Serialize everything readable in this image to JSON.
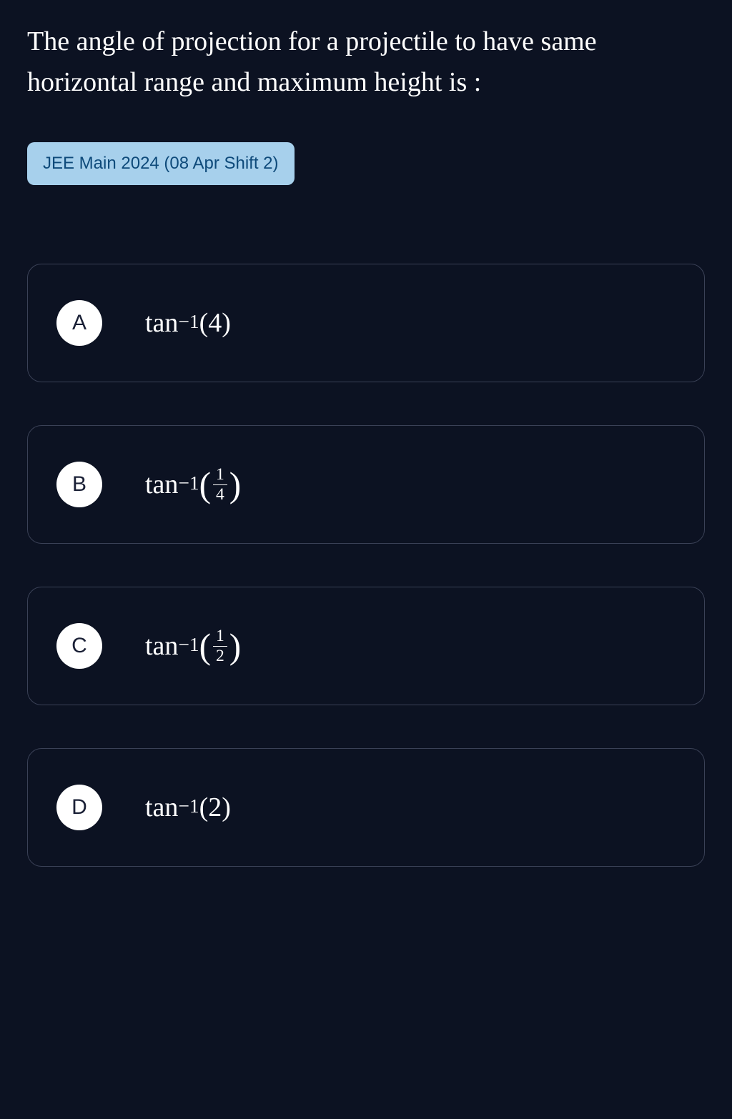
{
  "background_color": "#0c1222",
  "text_color": "#ffffff",
  "question": {
    "text": "The angle of projection for a projectile to have same horizontal range and maximum height is :",
    "fontsize": 38
  },
  "tag": {
    "label": "JEE Main 2024 (08 Apr Shift 2)",
    "background_color": "#a7d0ec",
    "text_color": "#0e4a7a",
    "fontsize": 24
  },
  "options": {
    "border_color": "#3a4156",
    "letter_bg": "#ffffff",
    "letter_color": "#1a2036",
    "items": [
      {
        "letter": "A",
        "expr": {
          "prefix": "tan",
          "sup": "−1",
          "arg_type": "num",
          "arg": "4"
        }
      },
      {
        "letter": "B",
        "expr": {
          "prefix": "tan",
          "sup": "−1",
          "arg_type": "frac",
          "num": "1",
          "den": "4"
        }
      },
      {
        "letter": "C",
        "expr": {
          "prefix": "tan",
          "sup": "−1",
          "arg_type": "frac",
          "num": "1",
          "den": "2"
        }
      },
      {
        "letter": "D",
        "expr": {
          "prefix": "tan",
          "sup": "−1",
          "arg_type": "num",
          "arg": "2"
        }
      }
    ]
  }
}
